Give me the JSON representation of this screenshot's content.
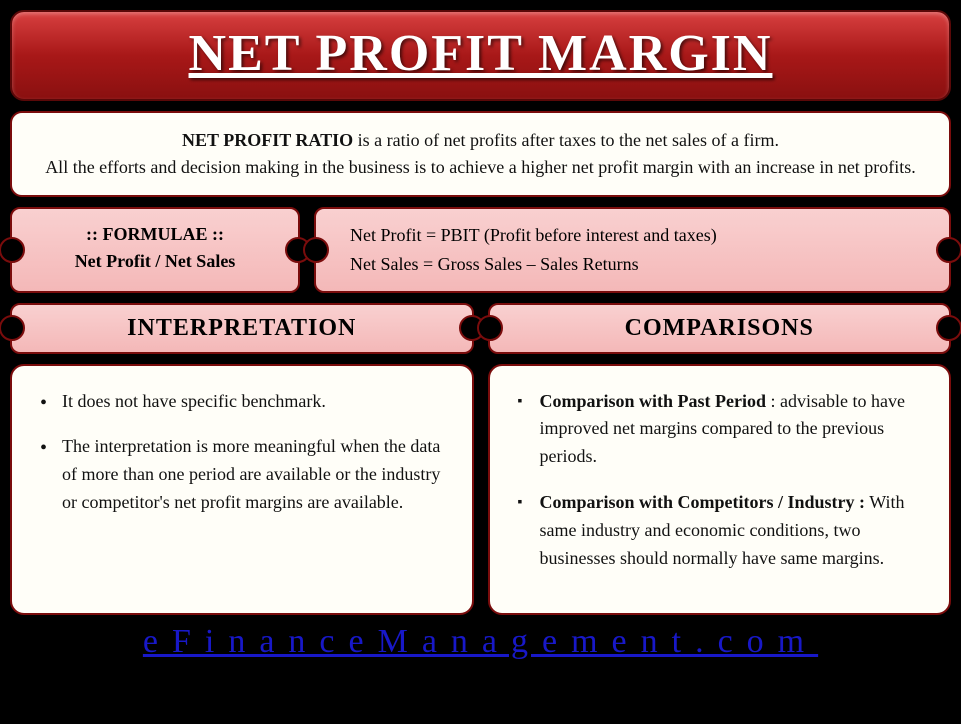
{
  "title": "NET PROFIT MARGIN",
  "intro": {
    "bold_lead": "NET PROFIT RATIO",
    "text_after_bold": " is a ratio of net profits after taxes to the net sales of a firm.",
    "line2": "All the efforts and decision making in the business is to achieve a higher net profit margin with an increase in net profits."
  },
  "formula": {
    "label": ":: FORMULAE ::",
    "expression": "Net Profit / Net Sales",
    "def1": "Net Profit = PBIT (Profit before interest and taxes)",
    "def2": "Net Sales = Gross Sales – Sales Returns"
  },
  "sections": {
    "interpretation": {
      "header": "INTERPRETATION",
      "items": [
        {
          "text": "It does not have specific benchmark."
        },
        {
          "text": "The interpretation is more meaningful when the data of more than one period are available or the industry or competitor's net profit margins are available."
        }
      ]
    },
    "comparisons": {
      "header": "COMPARISONS",
      "items": [
        {
          "bold": "Comparison with Past Period",
          "text": " : advisable to have improved net margins compared to the previous periods."
        },
        {
          "bold": "Comparison with Competitors / Industry :",
          "text": " With same industry and economic conditions, two businesses should normally have same margins."
        }
      ]
    }
  },
  "footer": "eFinanceManagement.com",
  "colors": {
    "banner_gradient_top": "#d84040",
    "banner_gradient_mid": "#a81818",
    "banner_gradient_bot": "#8a1010",
    "ticket_bg_top": "#f9d0d0",
    "ticket_bg_bot": "#f4b8b8",
    "border": "#7a0c0c",
    "box_bg": "#fffef8",
    "page_bg": "#000000",
    "footer_text": "#1818c8"
  }
}
